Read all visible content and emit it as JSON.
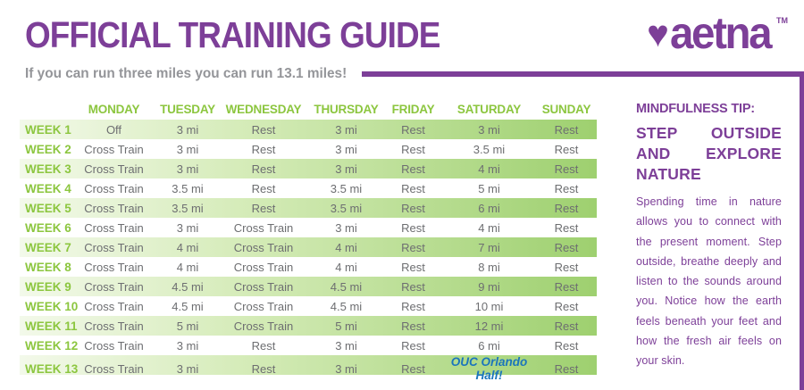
{
  "header": {
    "title": "OFFICIAL TRAINING GUIDE",
    "subtitle": "If you can run three miles you can run 13.1 miles!",
    "brand": {
      "name": "aetna",
      "trademark": "TM",
      "heart_icon": "heart",
      "heart_glyph": "♥"
    }
  },
  "colors": {
    "brand_purple": "#7D3F98",
    "accent_green": "#8CC63F",
    "cell_gray": "#6D6E71",
    "subtitle_gray": "#949599",
    "row_gradient_start": "#F3F9EA",
    "row_gradient_end": "#9ED06F",
    "race_blue": "#1B75BC"
  },
  "table": {
    "columns": [
      "MONDAY",
      "TUESDAY",
      "WEDNESDAY",
      "THURSDAY",
      "FRIDAY",
      "SATURDAY",
      "SUNDAY"
    ],
    "rows": [
      {
        "week": "WEEK 1",
        "cells": [
          "Off",
          "3 mi",
          "Rest",
          "3 mi",
          "Rest",
          "3 mi",
          "Rest"
        ]
      },
      {
        "week": "WEEK 2",
        "cells": [
          "Cross Train",
          "3 mi",
          "Rest",
          "3 mi",
          "Rest",
          "3.5 mi",
          "Rest"
        ]
      },
      {
        "week": "WEEK 3",
        "cells": [
          "Cross Train",
          "3 mi",
          "Rest",
          "3 mi",
          "Rest",
          "4 mi",
          "Rest"
        ]
      },
      {
        "week": "WEEK 4",
        "cells": [
          "Cross Train",
          "3.5 mi",
          "Rest",
          "3.5 mi",
          "Rest",
          "5 mi",
          "Rest"
        ]
      },
      {
        "week": "WEEK 5",
        "cells": [
          "Cross Train",
          "3.5 mi",
          "Rest",
          "3.5 mi",
          "Rest",
          "6 mi",
          "Rest"
        ]
      },
      {
        "week": "WEEK 6",
        "cells": [
          "Cross Train",
          "3 mi",
          "Cross Train",
          "3 mi",
          "Rest",
          "4 mi",
          "Rest"
        ]
      },
      {
        "week": "WEEK 7",
        "cells": [
          "Cross Train",
          "4 mi",
          "Cross Train",
          "4 mi",
          "Rest",
          "7 mi",
          "Rest"
        ]
      },
      {
        "week": "WEEK 8",
        "cells": [
          "Cross Train",
          "4 mi",
          "Cross Train",
          "4 mi",
          "Rest",
          "8 mi",
          "Rest"
        ]
      },
      {
        "week": "WEEK 9",
        "cells": [
          "Cross Train",
          "4.5 mi",
          "Cross Train",
          "4.5 mi",
          "Rest",
          "9 mi",
          "Rest"
        ]
      },
      {
        "week": "WEEK 10",
        "cells": [
          "Cross Train",
          "4.5 mi",
          "Cross Train",
          "4.5 mi",
          "Rest",
          "10 mi",
          "Rest"
        ]
      },
      {
        "week": "WEEK 11",
        "cells": [
          "Cross Train",
          "5 mi",
          "Cross Train",
          "5 mi",
          "Rest",
          "12 mi",
          "Rest"
        ]
      },
      {
        "week": "WEEK 12",
        "cells": [
          "Cross Train",
          "3 mi",
          "Rest",
          "3 mi",
          "Rest",
          "6 mi",
          "Rest"
        ]
      },
      {
        "week": "WEEK 13",
        "cells": [
          "Cross Train",
          "3 mi",
          "Rest",
          "3 mi",
          "Rest",
          "OUC Orlando Half!",
          "Rest"
        ],
        "race_cell_index": 5
      }
    ]
  },
  "sidebar": {
    "tip_label": "MINDFULNESS TIP:",
    "tip_title": "STEP OUTSIDE AND EXPLORE NATURE",
    "tip_body": "Spending time in nature allows you to connect with the present moment. Step outside, breathe deeply and listen to the sounds around you. Notice how the earth feels beneath your feet and how the fresh air feels on your skin."
  }
}
